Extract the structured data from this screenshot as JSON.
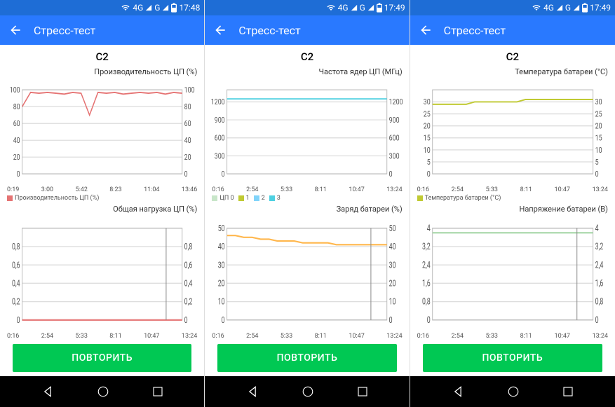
{
  "status": {
    "signal": "4G",
    "extra": "G",
    "time1": "17:48",
    "time2": "17:49",
    "time3": "17:49"
  },
  "appbar": {
    "title": "Стресс-тест"
  },
  "page_title": "C2",
  "repeat_label": "ПОВТОРИТЬ",
  "colors": {
    "appbar": "#2979ff",
    "statusbar": "#1e6dd6",
    "button": "#00c853",
    "grid": "#dddddd",
    "series_red": "#e57373",
    "series_cyan": "#4dd0e1",
    "series_olive": "#c0ca33",
    "series_orange": "#ffb74d",
    "series_green": "#a5d6a7",
    "series_lightgreen": "#c8e6c9",
    "series_blue": "#81d4fa"
  },
  "panels": [
    {
      "time": "17:48",
      "top": {
        "title": "Производительность ЦП (%)",
        "ylim": [
          0,
          100
        ],
        "yticks": [
          0,
          20,
          40,
          60,
          80,
          100
        ],
        "xlabels": [
          "0:19",
          "3:00",
          "5:42",
          "8:23",
          "11:04",
          "13:46"
        ],
        "series": [
          {
            "color": "#e57373",
            "data": [
              80,
              97,
              96,
              97,
              96,
              95,
              97,
              96,
              70,
              97,
              96,
              97,
              95,
              96,
              97,
              96,
              97,
              95,
              97,
              96
            ]
          }
        ],
        "legend": [
          {
            "color": "#e57373",
            "label": "Производительность ЦП (%)"
          }
        ]
      },
      "bottom": {
        "title": "Общая нагрузка ЦП (%)",
        "ylim": [
          0,
          1.0
        ],
        "yticks": [
          0,
          0.2,
          0.4,
          0.6,
          0.8
        ],
        "xlabels": [
          "0:16",
          "2:54",
          "5:33",
          "8:11",
          "10:47",
          "13:24"
        ],
        "series": [
          {
            "color": "#e57373",
            "data": [
              0,
              0,
              0,
              0,
              0,
              0,
              0,
              0,
              0,
              0,
              0,
              0,
              0,
              0,
              0,
              0,
              0,
              0,
              0,
              0
            ]
          }
        ],
        "legend": [],
        "vline": 0.9
      }
    },
    {
      "time": "17:49",
      "top": {
        "title": "Частота ядер ЦП (МГц)",
        "ylim": [
          0,
          1400
        ],
        "yticks": [
          0,
          300,
          600,
          900,
          1200
        ],
        "xlabels": [
          "0:16",
          "2:54",
          "5:33",
          "8:11",
          "10:47",
          "13:24"
        ],
        "series": [
          {
            "color": "#4dd0e1",
            "data": [
              1250,
              1250,
              1250,
              1250,
              1250,
              1250,
              1250,
              1250,
              1250,
              1250,
              1250,
              1250,
              1250,
              1250,
              1250,
              1250,
              1250,
              1250,
              1250,
              1250
            ]
          }
        ],
        "legend": [
          {
            "color": "#c8e6c9",
            "label": "ЦП 0"
          },
          {
            "color": "#c0ca33",
            "label": "1"
          },
          {
            "color": "#81d4fa",
            "label": "2"
          },
          {
            "color": "#4dd0e1",
            "label": "3"
          }
        ]
      },
      "bottom": {
        "title": "Заряд батареи (%)",
        "ylim": [
          0,
          50
        ],
        "yticks": [
          0,
          10,
          20,
          30,
          40,
          50
        ],
        "xlabels": [
          "0:16",
          "2:54",
          "5:33",
          "8:11",
          "10:47",
          "13:24"
        ],
        "series": [
          {
            "color": "#ffb74d",
            "data": [
              46,
              46,
              45,
              45,
              44,
              44,
              43,
              43,
              43,
              42,
              42,
              42,
              42,
              41,
              41,
              41,
              41,
              41,
              41,
              41
            ]
          }
        ],
        "legend": [],
        "vline": 0.9
      }
    },
    {
      "time": "17:49",
      "top": {
        "title": "Температура батареи (°C)",
        "ylim": [
          0,
          35
        ],
        "yticks": [
          0,
          5,
          10,
          15,
          20,
          25,
          30
        ],
        "xlabels": [
          "0:16",
          "2:54",
          "5:33",
          "8:11",
          "10:47",
          "13:24"
        ],
        "series": [
          {
            "color": "#c0ca33",
            "data": [
              29,
              29,
              29,
              29,
              29,
              30,
              30,
              30,
              30,
              30,
              30,
              31,
              31,
              31,
              31,
              31,
              31,
              31,
              31,
              31
            ]
          }
        ],
        "legend": [
          {
            "color": "#c0ca33",
            "label": "Температура батареи (°C)"
          }
        ]
      },
      "bottom": {
        "title": "Напряжение батареи (В)",
        "ylim": [
          0,
          4.0
        ],
        "yticks": [
          0,
          0.8,
          1.6,
          2.4,
          3.2,
          4.0
        ],
        "xlabels": [
          "0:16",
          "2:54",
          "5:33",
          "8:11",
          "10:47",
          "13:24"
        ],
        "series": [
          {
            "color": "#a5d6a7",
            "data": [
              3.8,
              3.8,
              3.8,
              3.8,
              3.8,
              3.8,
              3.8,
              3.8,
              3.8,
              3.8,
              3.8,
              3.8,
              3.8,
              3.8,
              3.8,
              3.8,
              3.8,
              3.8,
              3.8,
              3.8
            ]
          }
        ],
        "legend": [],
        "vline": 0.9
      }
    }
  ]
}
